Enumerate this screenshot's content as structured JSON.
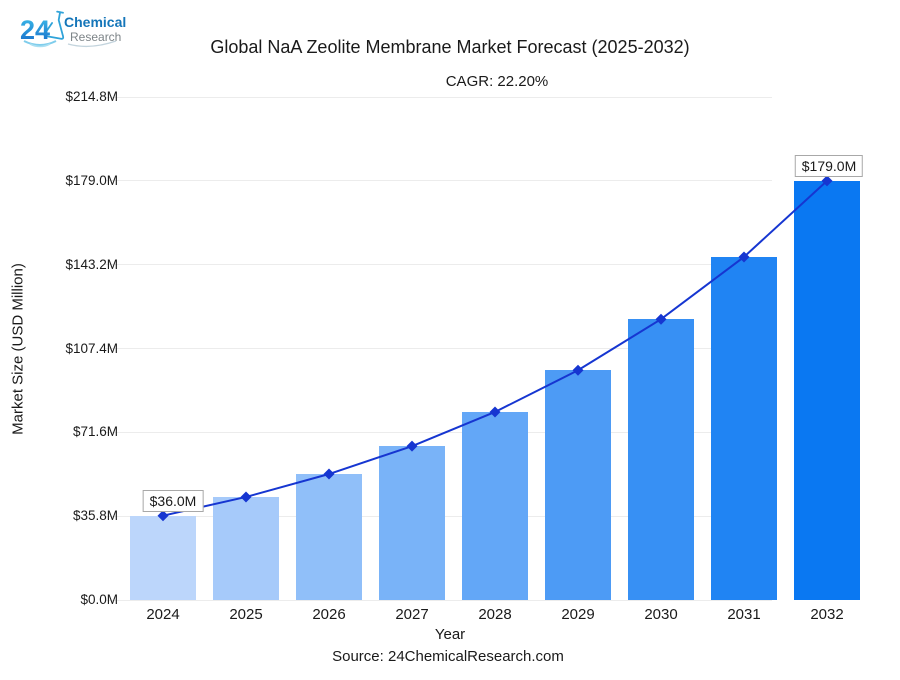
{
  "logo": {
    "number": "24",
    "line1": "Chemical",
    "line2": "Research"
  },
  "chart_data": {
    "type": "bar",
    "overlay": "line",
    "title": "Global NaA Zeolite Membrane Market Forecast (2025-2032)",
    "subtitle": "CAGR: 22.20%",
    "categories": [
      "2024",
      "2025",
      "2026",
      "2027",
      "2028",
      "2029",
      "2030",
      "2031",
      "2032"
    ],
    "values": [
      36.0,
      44.0,
      53.8,
      65.7,
      80.3,
      98.1,
      119.9,
      146.5,
      179.0
    ],
    "unit": "USD Million",
    "xlabel": "Year",
    "ylabel": "Market Size (USD Million)",
    "ylim": [
      0,
      214.8
    ],
    "yticks": [
      0.0,
      35.8,
      71.6,
      107.4,
      143.2,
      179.0,
      214.8
    ],
    "ytick_labels": [
      "$0.0M",
      "$35.8M",
      "$71.6M",
      "$107.4M",
      "$143.2M",
      "$179.0M",
      "$214.8M"
    ],
    "annotations": [
      {
        "category": "2024",
        "index": 0,
        "text": "$36.0M"
      },
      {
        "category": "2032",
        "index": 8,
        "text": "$179.0M"
      }
    ],
    "grid": true,
    "legend": false
  },
  "footer": {
    "source": "Source: 24ChemicalResearch.com"
  },
  "colors": {
    "bar_start": "#bcd6fb",
    "bar_end": "#0a78f2",
    "line": "#1636d1",
    "grid": "#ececec",
    "text": "#1a1a1a",
    "annotation_border": "#a8a8a8",
    "logo_blue": "#1576b9",
    "logo_cyan": "#2fa3d9",
    "logo_gray": "#7d8488"
  }
}
